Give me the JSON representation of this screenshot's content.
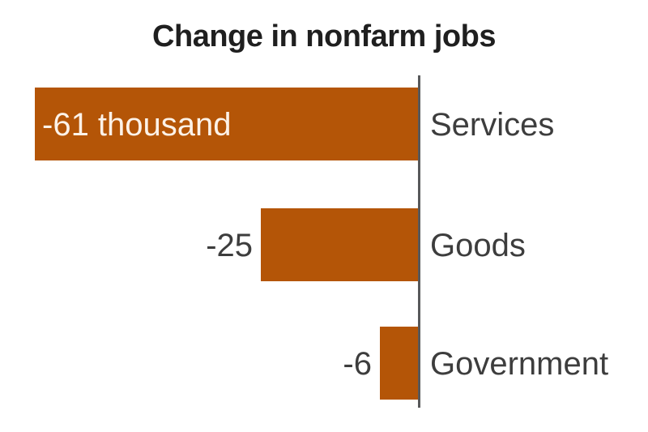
{
  "chart_data": {
    "type": "bar",
    "orientation": "horizontal",
    "title": "Change in nonfarm jobs",
    "categories": [
      "Services",
      "Goods",
      "Government"
    ],
    "values": [
      -61,
      -25,
      -6
    ],
    "value_labels": [
      "-61 thousand",
      "-25",
      "-6"
    ],
    "label_placement": [
      "inside",
      "outside",
      "outside"
    ],
    "unit": "thousands of jobs",
    "xlim": [
      -61,
      0
    ],
    "legend": "none",
    "grid": "off",
    "baseline": "zero axis drawn as vertical line on right side of bars, category labels to its right",
    "colors": {
      "bar": "#b45507",
      "axis": "#58595b",
      "title": "#1f1f1f",
      "category_label": "#3d3d3d",
      "outside_value_label": "#3d3d3d",
      "inside_value_label": "#fcf2e8",
      "background": "#ffffff"
    }
  }
}
